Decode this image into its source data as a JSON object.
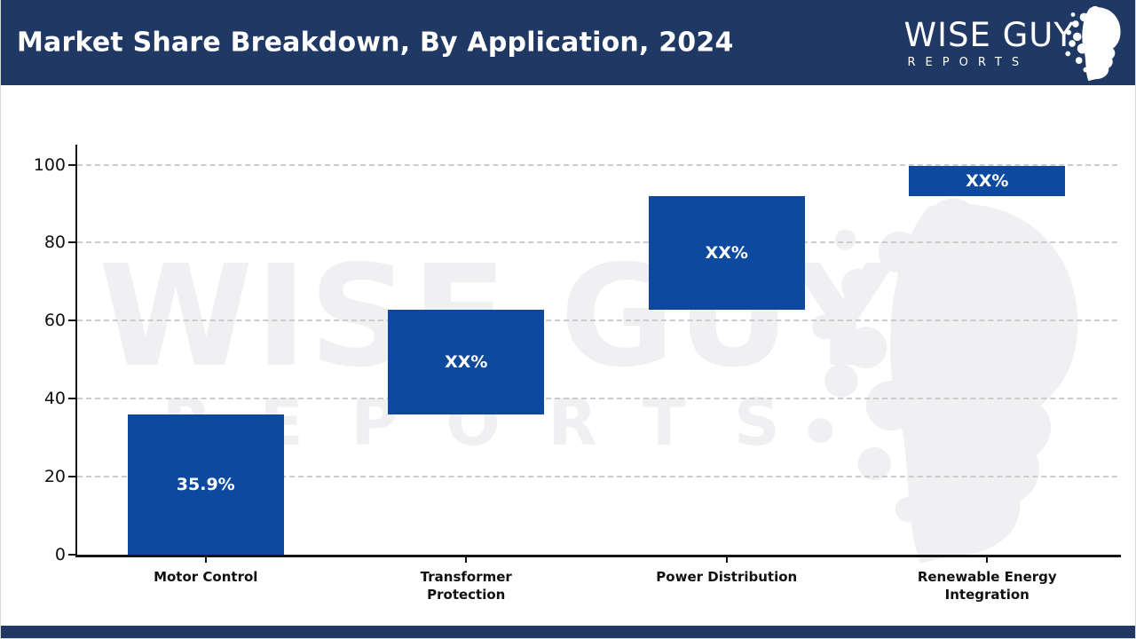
{
  "header": {
    "title": "Market Share Breakdown, By Application, 2024",
    "logo": {
      "name": "WISE GUY",
      "sub": "REPORTS"
    }
  },
  "watermark": {
    "name": "WISE GUY",
    "sub": "REPORTS"
  },
  "colors": {
    "header_bg": "#1f3864",
    "footer_bg": "#1f3864",
    "bar": "#0d4a9f",
    "bar_label": "#ffffff",
    "grid": "#cccccc",
    "axis": "#141414",
    "watermark": "#f0f0f2",
    "card_border": "#d9d9d9"
  },
  "chart_data": {
    "type": "bar",
    "subtype": "market-share-breakdown-floating-segments",
    "title": "Market Share Breakdown, By Application, 2024",
    "categories": [
      "Motor Control",
      "Transformer Protection",
      "Power Distribution",
      "Renewable Energy Integration"
    ],
    "segments": [
      {
        "category": "Motor Control",
        "start": 0,
        "end": 35.9,
        "label": "35.9%"
      },
      {
        "category": "Transformer Protection",
        "start": 35.9,
        "end": 62.7,
        "label": "XX%"
      },
      {
        "category": "Power Distribution",
        "start": 62.7,
        "end": 92.0,
        "label": "XX%"
      },
      {
        "category": "Renewable Energy Integration",
        "start": 92.0,
        "end": 99.6,
        "label": "XX%"
      }
    ],
    "xlabel": "",
    "ylabel": "",
    "ylim": [
      0,
      105
    ],
    "yticks": [
      0,
      20,
      40,
      60,
      80,
      100
    ],
    "grid": "dashed-horizontal",
    "legend": "none"
  }
}
